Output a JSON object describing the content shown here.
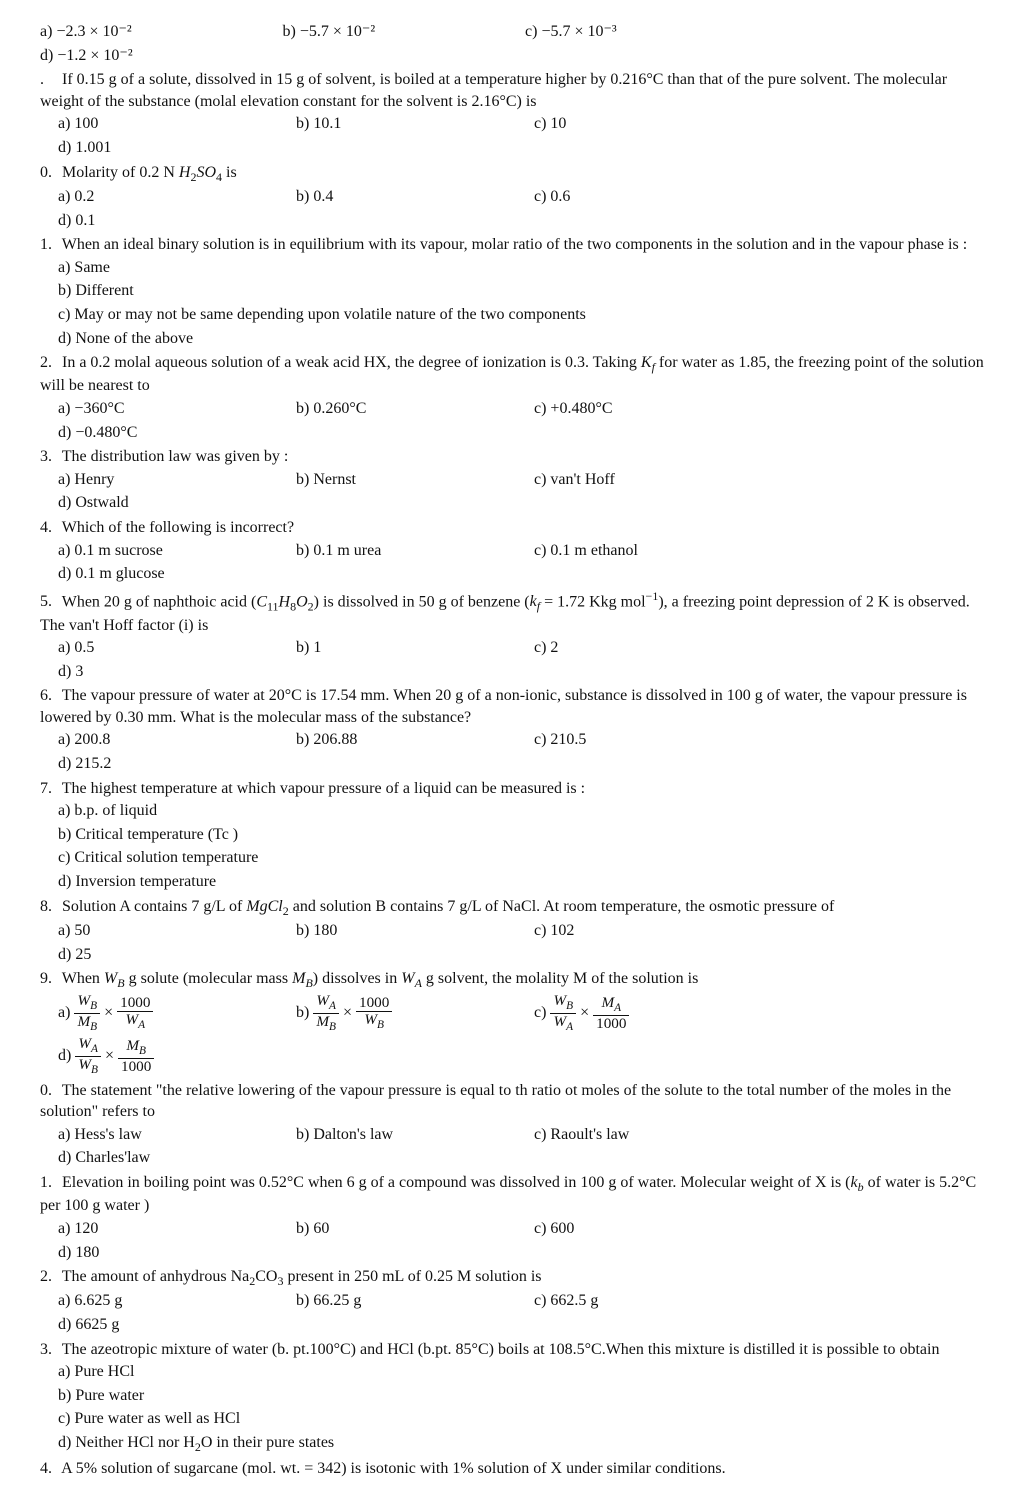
{
  "prev_options": {
    "a": "−2.3 × 10⁻²",
    "b": "−5.7 × 10⁻²",
    "c": "−5.7 × 10⁻³",
    "d": "−1.2 × 10⁻²"
  },
  "questions": [
    {
      "num": ".",
      "text": "If 0.15 g of a solute, dissolved in 15 g of solvent, is boiled at a temperature higher by 0.216°C than that of the pure solvent. The molecular weight of the substance (molal elevation constant for the solvent is 2.16°C) is",
      "layout": "four",
      "opts": {
        "a": "100",
        "b": "10.1",
        "c": "10",
        "d": "1.001"
      }
    },
    {
      "num": "0.",
      "text": "Molarity of 0.2 N H₂SO₄ is",
      "layout": "four",
      "opts": {
        "a": "0.2",
        "b": "0.4",
        "c": "0.6",
        "d": "0.1"
      }
    },
    {
      "num": "1.",
      "text": "When an ideal binary solution is in equilibrium with its vapour, molar ratio of the two components in the solution and in the vapour phase is :",
      "layout": "one",
      "opts": {
        "a": "Same",
        "b": "Different",
        "c": "May or may not be same depending upon volatile nature of the two components",
        "d": "None of the above"
      }
    },
    {
      "num": "2.",
      "text": "In a 0.2 molal aqueous solution of a weak acid HX, the degree of ionization is 0.3. Taking K_f for water as 1.85, the freezing point of the solution will be nearest to",
      "layout": "four",
      "opts": {
        "a": "−360°C",
        "b": "0.260°C",
        "c": "+0.480°C",
        "d": "−0.480°C"
      }
    },
    {
      "num": "3.",
      "text": "The distribution law was given by :",
      "layout": "four",
      "opts": {
        "a": "Henry",
        "b": "Nernst",
        "c": "van't Hoff",
        "d": "Ostwald"
      }
    },
    {
      "num": "4.",
      "text": "Which of the following is incorrect?",
      "layout": "four",
      "opts": {
        "a": "0.1 m sucrose",
        "b": "0.1 m urea",
        "c": "0.1 m ethanol",
        "d": "0.1 m glucose"
      }
    },
    {
      "num": "5.",
      "text": "When 20 g of naphthoic acid (C₁₁H₈O₂) is dissolved in 50 g of benzene (k_f = 1.72 Kkg mol⁻¹), a freezing point depression of 2 K is observed. The van't Hoff factor (i) is",
      "layout": "four",
      "opts": {
        "a": "0.5",
        "b": "1",
        "c": "2",
        "d": "3"
      }
    },
    {
      "num": "6.",
      "text": "The vapour pressure of water at 20°C is 17.54 mm. When 20 g of a non-ionic, substance is dissolved in 100 g of water, the vapour pressure is lowered by 0.30 mm. What is the molecular mass of the substance?",
      "layout": "four",
      "opts": {
        "a": "200.8",
        "b": "206.88",
        "c": "210.5",
        "d": "215.2"
      }
    },
    {
      "num": "7.",
      "text": "The highest temperature at which vapour pressure of a liquid can be measured is :",
      "layout": "one",
      "opts": {
        "a": "b.p. of liquid",
        "b": "Critical temperature (Tc  )",
        "c": "Critical solution temperature",
        "d": "Inversion temperature"
      }
    },
    {
      "num": "8.",
      "text": "Solution A contains 7 g/L of MgCl₂ and solution B contains 7 g/L of NaCl.  At room temperature, the osmotic pressure of",
      "layout": "four",
      "opts": {
        "a": "50",
        "b": "180",
        "c": "102",
        "d": "25"
      }
    },
    {
      "num": "9.",
      "text": "When W_B g solute (molecular mass M_B) dissolves in W_A g solvent, the molality M of the solution is",
      "layout": "four",
      "frac_opts": true,
      "opts": {
        "a": "",
        "b": "",
        "c": "",
        "d": ""
      }
    },
    {
      "num": "0.",
      "text": "The statement \"the relative lowering of the vapour pressure is equal to th ratio ot moles of the solute to the total number of the moles in the solution\" refers to",
      "layout": "four",
      "opts": {
        "a": "Hess's law",
        "b": "Dalton's law",
        "c": "Raoult's law",
        "d": "Charles'law"
      }
    },
    {
      "num": "1.",
      "text": "Elevation in boiling point was 0.52°C when 6 g of a compound was dissolved in 100 g of water. Molecular weight of X is (k_b of water is 5.2°C per 100 g water )",
      "layout": "four",
      "opts": {
        "a": "120",
        "b": "60",
        "c": "600",
        "d": "180"
      }
    },
    {
      "num": "2.",
      "text": "The amount of anhydrous Na₂CO₃ present in 250 mL of 0.25 M solution is",
      "layout": "four",
      "opts": {
        "a": "6.625 g",
        "b": "66.25 g",
        "c": "662.5 g",
        "d": "6625 g"
      }
    },
    {
      "num": "3.",
      "text": "The azeotropic mixture of water (b. pt.100°C) and HCl (b.pt. 85°C) boils at 108.5°C.When this mixture is distilled it is possible to obtain",
      "layout": "two",
      "opts": {
        "a": "Pure HCl",
        "b": "Pure water",
        "c": "Pure water as well as HCl",
        "d": "Neither HCl nor H₂O in their pure states"
      }
    },
    {
      "num": "4.",
      "text": "A 5% solution of sugarcane (mol. wt. = 342) is isotonic with 1% solution of X under similar conditions.",
      "layout": "none"
    }
  ]
}
